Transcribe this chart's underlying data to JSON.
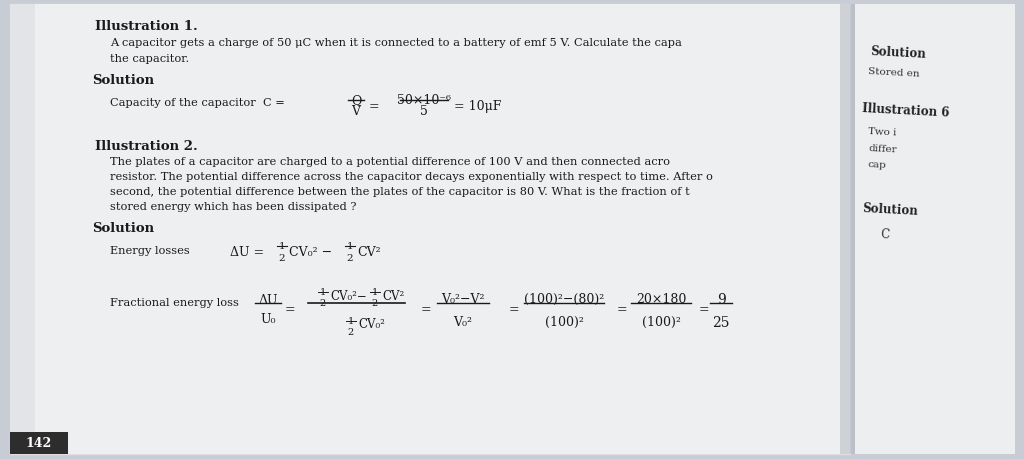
{
  "bg_color": "#c8ccd4",
  "page_bg": "#edeef0",
  "title1": "Illustration 1.",
  "para1": "A capacitor gets a charge of 50 μC when it is connected to a battery of emf 5 V. Calculate the capa",
  "para1b": "the capacitor.",
  "sol1_label": "Solution",
  "title2": "Illustration 2.",
  "para2a": "The plates of a capacitor are charged to a potential difference of 100 V and then connected acro",
  "para2b": "resistor. The potential difference across the capacitor decays exponentially with respect to time. After o",
  "para2c": "second, the potential difference between the plates of the capacitor is 80 V. What is the fraction of t",
  "para2d": "stored energy which has been dissipated ?",
  "sol2_label": "Solution",
  "page_num": "142",
  "right_col_sol": "Solution",
  "right_col_stored": "Stored en",
  "right_col_illus": "Illustration 6",
  "right_col_two": "Two i",
  "right_col_dif": "differ",
  "right_col_cap": "cap",
  "right_col_sol2": "Solution",
  "right_col_c": "C"
}
